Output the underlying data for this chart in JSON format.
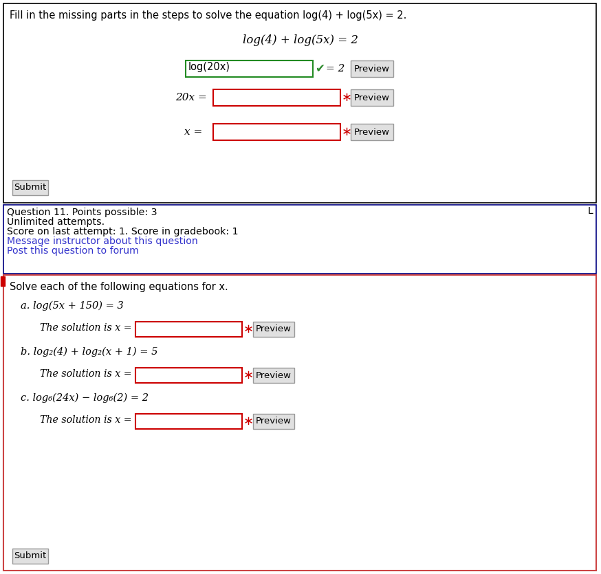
{
  "bg_color": "#ffffff",
  "title_text": "Fill in the missing parts in the steps to solve the equation log(4) + log(5x) = 2.",
  "eq_center": "log(4) + log(5x) = 2",
  "row1_box_text": "log(20x)",
  "row1_check": "✔",
  "row1_check_color": "#2d8a2d",
  "row1_box_border": "#228B22",
  "row1_eq": "= 2",
  "red_x": "∗",
  "red_x_color": "#cc0000",
  "empty_box_border": "#cc0000",
  "preview_btn_text": "Preview",
  "submit_btn_text": "Submit",
  "sec2_line1": "Question 11. Points possible: 3",
  "sec2_line2": "Unlimited attempts.",
  "sec2_line3": "Score on last attempt: 1. Score in gradebook: 1",
  "sec2_link1": "Message instructor about this question",
  "sec2_link2": "Post this question to forum",
  "link_color": "#3333cc",
  "sec3_title": "Solve each of the following equations for x.",
  "part_a_eq": "a. log(5x + 150) = 3",
  "part_b_eq": "b. log₂(4) + log₂(x + 1) = 5",
  "part_c_eq": "c. log₆(24x) − log₆(2) = 2",
  "sol_text": "The solution is x =",
  "sec1_border": "#000000",
  "sec2_border": "#000080",
  "sec3_border": "#cc4444",
  "L_color": "#000080",
  "red_marker_color": "#cc0000"
}
